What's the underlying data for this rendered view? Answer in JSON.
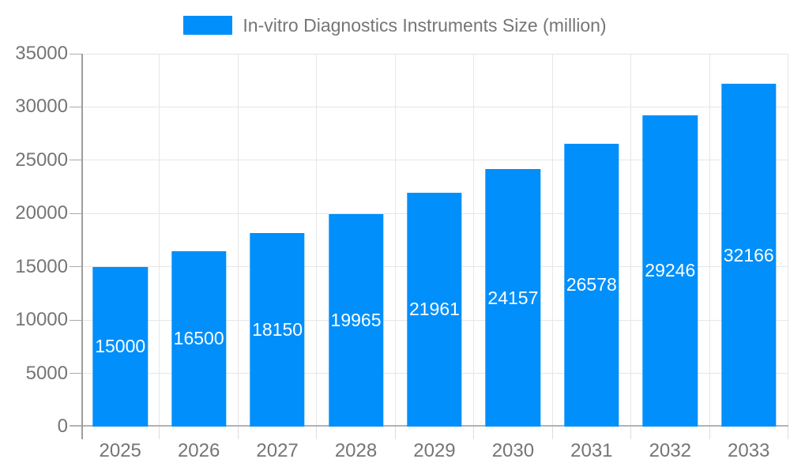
{
  "chart_data": {
    "type": "bar",
    "title": "",
    "legend": {
      "label": "In-vitro Diagnostics Instruments Size (million)",
      "position": "top"
    },
    "categories": [
      "2025",
      "2026",
      "2027",
      "2028",
      "2029",
      "2030",
      "2031",
      "2032",
      "2033"
    ],
    "series": [
      {
        "name": "In-vitro Diagnostics Instruments Size (million)",
        "values": [
          15000,
          16500,
          18150,
          19965,
          21961,
          24157,
          26578,
          29246,
          32166
        ]
      }
    ],
    "value_labels": [
      "15000",
      "16500",
      "18150",
      "19965",
      "21961",
      "24157",
      "26578",
      "29246",
      "32166"
    ],
    "xlabel": "",
    "ylabel": "",
    "ylim": [
      0,
      35000
    ],
    "ytick_step": 5000,
    "yticks": [
      "0",
      "5000",
      "10000",
      "15000",
      "20000",
      "25000",
      "30000",
      "35000"
    ],
    "grid": true,
    "value_labels_inside_bars": true,
    "colors": {
      "bar": "#008FFB",
      "axis_text": "#757575",
      "gridline": "#e6e6e6",
      "axis_line": "#9e9e9e",
      "zero_line": "#b3b3b3",
      "value_label_text": "#ffffff",
      "background": "#ffffff"
    }
  }
}
